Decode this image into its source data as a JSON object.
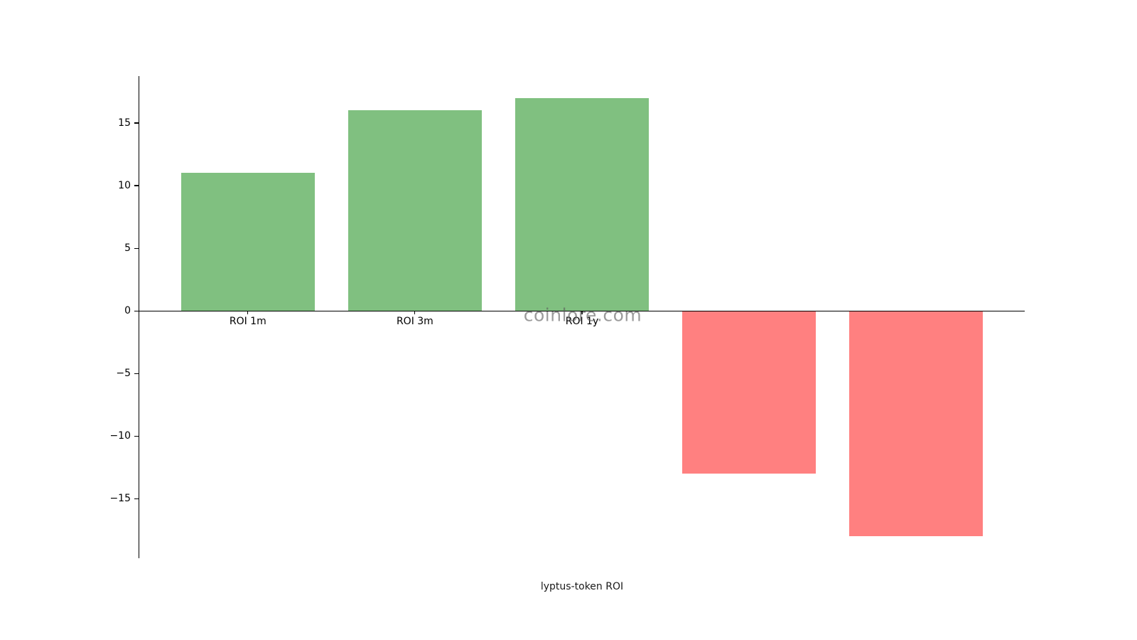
{
  "page": {
    "background": "#ffffff"
  },
  "watermark": {
    "text": "coinlore.com",
    "color": "#585858"
  },
  "chart_data": {
    "type": "bar",
    "title": "",
    "xlabel": "lyptus-token ROI",
    "ylabel": "",
    "categories": [
      "ROI 1m",
      "ROI 3m",
      "ROI 1y",
      "",
      ""
    ],
    "values": [
      11,
      16,
      17,
      -13,
      -18
    ],
    "bar_colors": {
      "positive": "#80c080",
      "negative": "#ff8080"
    },
    "axis_color": "#000000",
    "tick_label_color": "#000000",
    "ylim": [
      -19.75,
      18.75
    ],
    "yticks": [
      {
        "value": 15,
        "label": "15"
      },
      {
        "value": 10,
        "label": "10"
      },
      {
        "value": 5,
        "label": "5"
      },
      {
        "value": 0,
        "label": "0"
      },
      {
        "value": -5,
        "label": "−5"
      },
      {
        "value": -10,
        "label": "−10"
      },
      {
        "value": -15,
        "label": "−15"
      }
    ],
    "bar_width_fraction": 0.8,
    "x_margin_units": 0.65,
    "grid": false,
    "legend": null,
    "xlabel_position": "bottom",
    "zero_baseline": true
  }
}
